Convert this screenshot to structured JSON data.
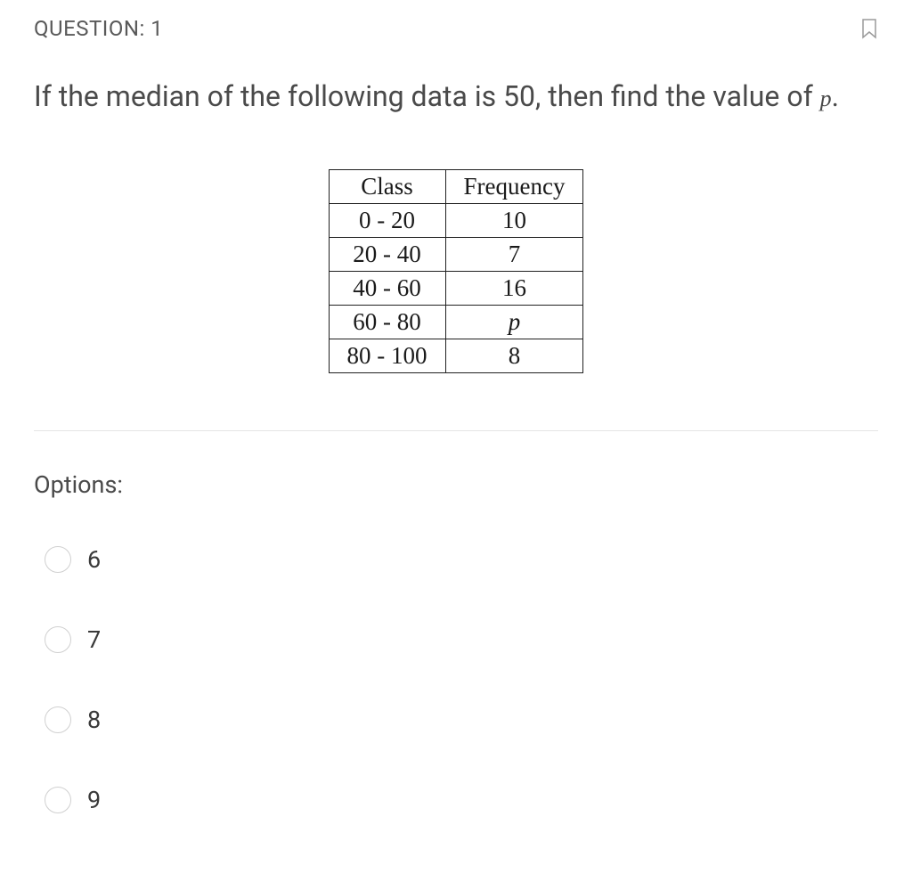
{
  "header": {
    "question_label": "QUESTION: 1"
  },
  "question": {
    "text_before_var": "If the median of the following data is 50, then find the value of ",
    "variable": "p",
    "text_after_var": "."
  },
  "table": {
    "type": "table",
    "border_color": "#202020",
    "background_color": "#ffffff",
    "font_family": "Times New Roman",
    "font_size_pt": 20,
    "columns": [
      "Class",
      "Frequency"
    ],
    "rows": [
      {
        "class": "0 - 20",
        "frequency": "10",
        "is_var": false
      },
      {
        "class": "20 - 40",
        "frequency": "7",
        "is_var": false
      },
      {
        "class": "40  - 60",
        "frequency": "16",
        "is_var": false
      },
      {
        "class": "60 - 80",
        "frequency": "p",
        "is_var": true
      },
      {
        "class": "80 - 100",
        "frequency": "8",
        "is_var": false
      }
    ]
  },
  "options": {
    "label": "Options:",
    "items": [
      "6",
      "7",
      "8",
      "9"
    ]
  },
  "colors": {
    "text_primary": "#4a4a4a",
    "text_dark": "#1a1a1a",
    "divider": "#e5e5e5",
    "radio_border": "#d0d0d0",
    "icon_stroke": "#9a9a9a",
    "background": "#ffffff"
  }
}
